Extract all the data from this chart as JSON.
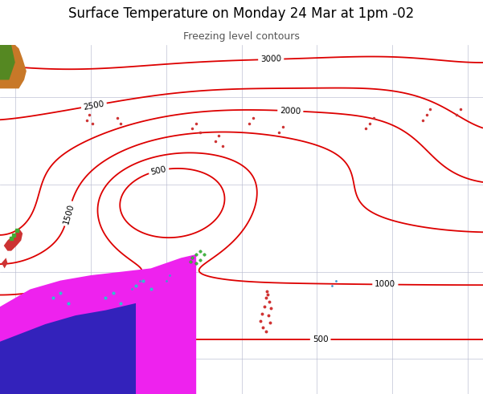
{
  "title": "Surface Temperature on Monday 24 Mar at 1pm -02",
  "subtitle": "Freezing level contours",
  "title_fontsize": 12,
  "subtitle_fontsize": 9,
  "map_bg": "#cdd2ea",
  "grid_color": "#b8bcd0",
  "contour_color": "#dd0000",
  "contour_linewidth": 1.3,
  "contour_label_fontsize": 7.5,
  "contour_levels": [
    500,
    1000,
    1500,
    2000,
    2500,
    3000
  ],
  "lon_min": -62,
  "lon_max": 2,
  "lat_min": -62,
  "lat_max": -42,
  "grid_lons": [
    -60,
    -50,
    -40,
    -30,
    -20,
    -10,
    0
  ],
  "grid_lats": [
    -60,
    -55,
    -50,
    -45
  ],
  "title_bg": "#ffffff"
}
